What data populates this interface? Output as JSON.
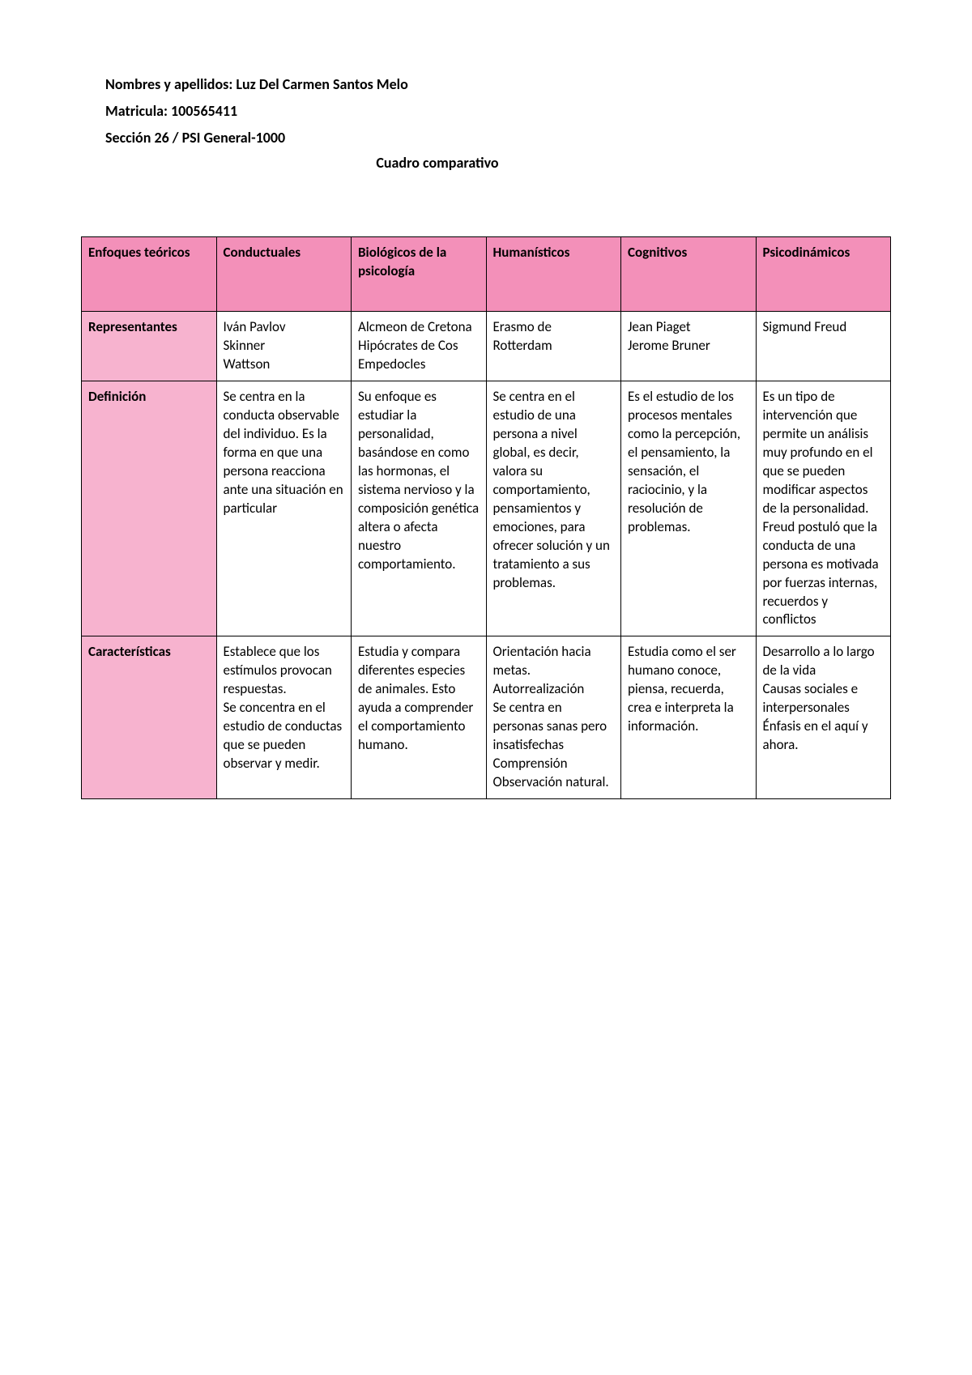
{
  "header": {
    "name_line": "Nombres y apellidos: Luz Del Carmen Santos Melo",
    "matricula_line": "Matricula: 100565411",
    "section_line": "Sección 26 / PSI General-1000",
    "title": "Cuadro comparativo"
  },
  "colors": {
    "header_row_bg": "#f390b9",
    "label_col_bg": "#f7b3cf",
    "border": "#000000",
    "page_bg": "#ffffff",
    "text": "#000000"
  },
  "typography": {
    "font_family": "Calibri, sans-serif",
    "header_fontsize": 18,
    "cell_fontsize": 17,
    "header_bold": true
  },
  "table": {
    "columns": [
      "Enfoques teóricos",
      "Conductuales",
      "Biológicos de la psicología",
      "Humanísticos",
      "Cognitivos",
      "Psicodinámicos"
    ],
    "rows": [
      {
        "label": "Representantes",
        "cells": [
          "Iván Pavlov\nSkinner\nWattson",
          "Alcmeon de Cretona\nHipócrates de Cos\nEmpedocles",
          "Erasmo de Rotterdam",
          "Jean Piaget\nJerome Bruner",
          "Sigmund Freud"
        ]
      },
      {
        "label": "Definición",
        "cells": [
          "Se centra en la conducta observable del individuo. Es la forma en que una persona reacciona ante una situación en particular",
          "Su enfoque es estudiar la personalidad, basándose en como las hormonas, el sistema nervioso y la composición genética altera o afecta nuestro comportamiento.",
          "Se centra en el estudio de una persona a nivel global, es decir, valora su comportamiento, pensamientos y emociones, para ofrecer solución y un tratamiento a sus problemas.",
          "Es el estudio de los procesos mentales como la percepción, el pensamiento, la sensación, el raciocinio, y la resolución de problemas.",
          "Es un tipo de intervención que permite un análisis muy profundo en el que se pueden modificar aspectos de la personalidad. Freud postuló que la conducta de una persona es motivada por fuerzas internas, recuerdos y conflictos"
        ]
      },
      {
        "label": "Características",
        "cells": [
          "Establece que los estímulos provocan respuestas.\nSe concentra en el estudio de conductas que se pueden observar y medir.",
          "Estudia y compara diferentes especies de animales. Esto ayuda a comprender el comportamiento humano.",
          "Orientación hacia metas.\nAutorrealización\nSe centra en personas sanas pero insatisfechas\nComprensión\nObservación natural.",
          "Estudia como el ser humano conoce, piensa, recuerda, crea e interpreta la información.",
          "Desarrollo a lo largo de la vida\nCausas sociales e interpersonales\nÉnfasis en el aquí y ahora."
        ]
      }
    ]
  }
}
